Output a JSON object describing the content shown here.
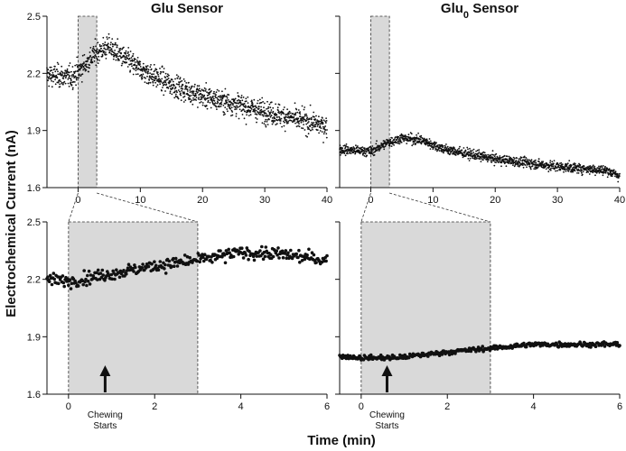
{
  "figure": {
    "ylabel": "Electrochemical Current (nA)",
    "xlabel": "Time (min)"
  },
  "chart_data": [
    {
      "type": "scatter",
      "panel": "top-left",
      "title": "Glu Sensor",
      "title_sub": "",
      "title_suffix": "",
      "xlim": [
        -5,
        40
      ],
      "ylim": [
        1.6,
        2.5
      ],
      "xticks": [
        0,
        10,
        20,
        30,
        40
      ],
      "yticks": [
        1.6,
        1.9,
        2.2,
        2.5
      ],
      "highlight": {
        "from": 0,
        "to": 3,
        "color": "#d9d9d9"
      },
      "trend": [
        [
          -5,
          2.19
        ],
        [
          -1,
          2.18
        ],
        [
          1,
          2.24
        ],
        [
          3,
          2.31
        ],
        [
          5,
          2.34
        ],
        [
          7,
          2.29
        ],
        [
          10,
          2.22
        ],
        [
          15,
          2.14
        ],
        [
          20,
          2.08
        ],
        [
          25,
          2.04
        ],
        [
          30,
          2.0
        ],
        [
          35,
          1.96
        ],
        [
          40,
          1.92
        ]
      ],
      "noise": 0.05,
      "n_points": 1400
    },
    {
      "type": "scatter",
      "panel": "top-right",
      "title": "Glu",
      "title_sub": "0",
      "title_suffix": " Sensor",
      "xlim": [
        -5,
        40
      ],
      "ylim": [
        1.6,
        2.5
      ],
      "xticks": [
        0,
        10,
        20,
        30,
        40
      ],
      "yticks": [
        1.6,
        1.9,
        2.2,
        2.5
      ],
      "highlight": {
        "from": 0,
        "to": 3,
        "color": "#d9d9d9"
      },
      "trend": [
        [
          -5,
          1.8
        ],
        [
          0,
          1.79
        ],
        [
          3,
          1.84
        ],
        [
          5,
          1.86
        ],
        [
          8,
          1.85
        ],
        [
          12,
          1.8
        ],
        [
          20,
          1.75
        ],
        [
          30,
          1.71
        ],
        [
          38,
          1.69
        ],
        [
          40,
          1.66
        ]
      ],
      "noise": 0.022,
      "n_points": 1400
    },
    {
      "type": "scatter",
      "panel": "bottom-left",
      "xlim": [
        -0.5,
        6
      ],
      "ylim": [
        1.6,
        2.5
      ],
      "xticks": [
        0,
        2,
        4,
        6
      ],
      "yticks": [
        1.6,
        1.9,
        2.2,
        2.5
      ],
      "highlight": {
        "from": 0,
        "to": 3,
        "color": "#d9d9d9"
      },
      "trend": [
        [
          -0.5,
          2.2
        ],
        [
          0,
          2.19
        ],
        [
          1,
          2.23
        ],
        [
          2,
          2.27
        ],
        [
          3,
          2.3
        ],
        [
          3.5,
          2.32
        ],
        [
          4,
          2.34
        ],
        [
          5,
          2.33
        ],
        [
          6,
          2.3
        ]
      ],
      "noise": 0.028,
      "n_points": 340,
      "arrow_x": 0.85,
      "annotation": [
        "Chewing",
        "Starts"
      ]
    },
    {
      "type": "scatter",
      "panel": "bottom-right",
      "xlim": [
        -0.5,
        6
      ],
      "ylim": [
        1.6,
        2.5
      ],
      "xticks": [
        0,
        2,
        4,
        6
      ],
      "yticks": [
        1.6,
        1.9,
        2.2,
        2.5
      ],
      "highlight": {
        "from": 0,
        "to": 3,
        "color": "#d9d9d9"
      },
      "trend": [
        [
          -0.5,
          1.8
        ],
        [
          0,
          1.79
        ],
        [
          0.8,
          1.79
        ],
        [
          2,
          1.82
        ],
        [
          3,
          1.84
        ],
        [
          4,
          1.86
        ],
        [
          5,
          1.86
        ],
        [
          6,
          1.86
        ]
      ],
      "noise": 0.011,
      "n_points": 340,
      "arrow_x": 0.6,
      "annotation": [
        "Chewing",
        "Starts"
      ]
    }
  ]
}
